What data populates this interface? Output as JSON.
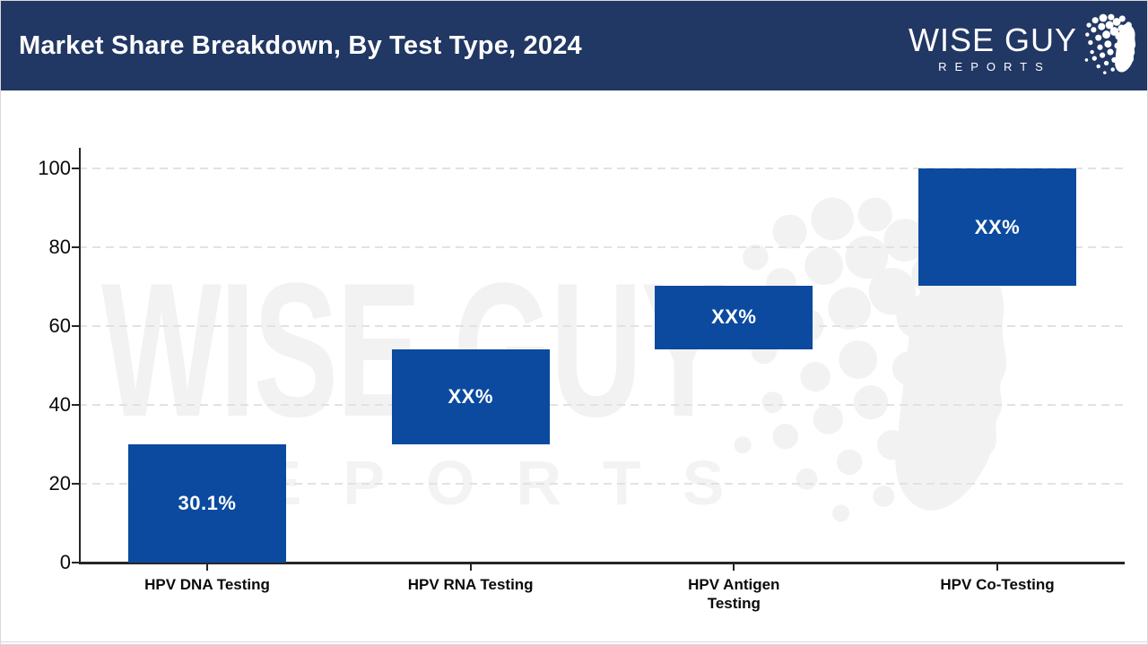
{
  "header": {
    "title": "Market Share Breakdown, By Test Type, 2024",
    "brand_name": "WISE GUY",
    "brand_sub": "REPORTS"
  },
  "watermark": {
    "line1": "WISE GUY",
    "line2": "REPORTS"
  },
  "chart_data": {
    "type": "bar",
    "subtype": "waterfall",
    "title": "Market Share Breakdown, By Test Type, 2024",
    "categories": [
      [
        "HPV DNA Testing"
      ],
      [
        "HPV RNA Testing"
      ],
      [
        "HPV Antigen",
        "Testing"
      ],
      [
        "HPV Co-Testing"
      ]
    ],
    "segments": [
      {
        "label": "30.1%",
        "start": 0,
        "end": 30.1
      },
      {
        "label": "XX%",
        "start": 30.1,
        "end": 54.2
      },
      {
        "label": "XX%",
        "start": 54.2,
        "end": 70.2
      },
      {
        "label": "XX%",
        "start": 70.2,
        "end": 100
      }
    ],
    "yticks": [
      0,
      20,
      40,
      60,
      80,
      100
    ],
    "ylim": [
      0,
      105
    ],
    "xlabel": "",
    "ylabel": "",
    "grid": true,
    "legend": "none",
    "bar_color": "#0B4A9E",
    "label_color": "#ffffff",
    "background": "#ffffff"
  }
}
